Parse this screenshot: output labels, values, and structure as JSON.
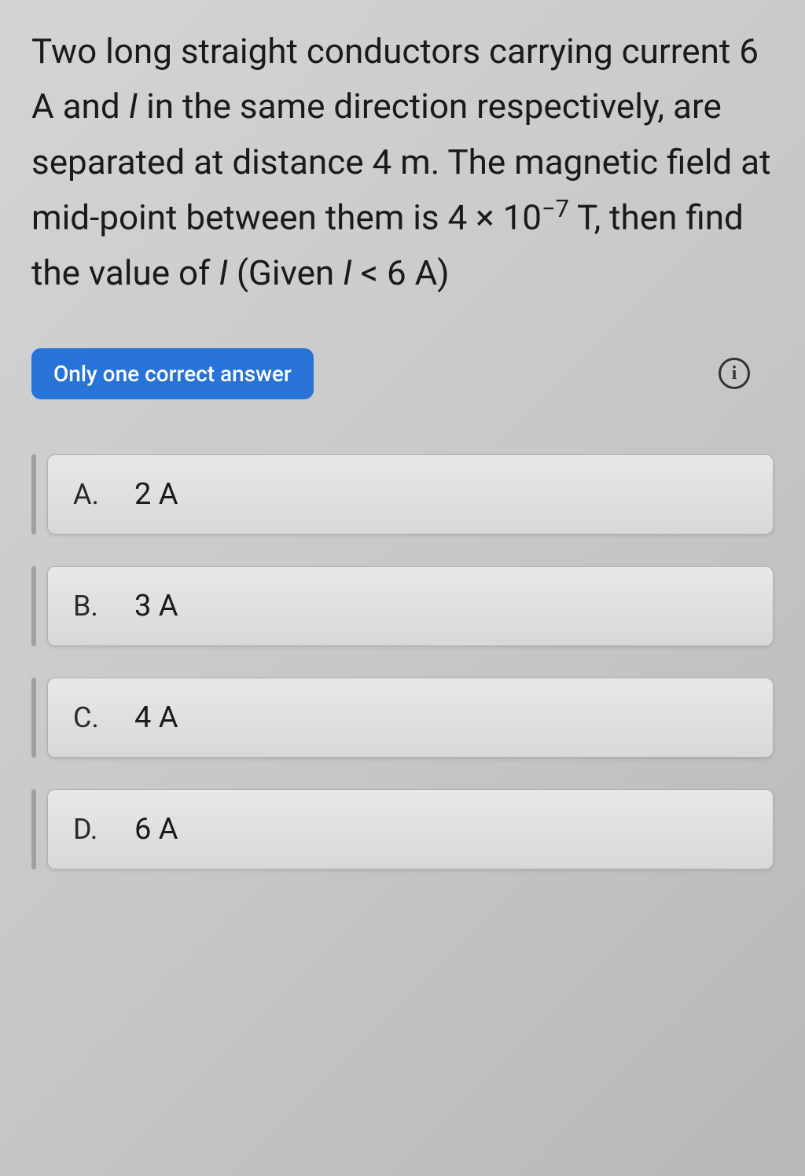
{
  "question": {
    "text_parts": [
      "Two long straight conductors carrying current 6 A and ",
      " in the same direction respectively, are separated at distance 4 m. The magnetic field at mid-point between them is 4 × 10",
      " T, then find the value of ",
      " (Given ",
      " < 6 A)"
    ],
    "italic_I": "I",
    "exponent": "−7",
    "font_size": 44,
    "color": "#1a1a1a"
  },
  "answer_type": {
    "label": "Only one correct answer",
    "background_color": "#2873d8",
    "text_color": "#ffffff",
    "font_size": 28
  },
  "info_icon": {
    "symbol": "i",
    "border_color": "#333"
  },
  "options": [
    {
      "letter": "A.",
      "value": "2 A"
    },
    {
      "letter": "B.",
      "value": "3 A"
    },
    {
      "letter": "C.",
      "value": "4 A"
    },
    {
      "letter": "D.",
      "value": "6 A"
    }
  ],
  "styling": {
    "body_width": 1024,
    "body_height": 1496,
    "background_gradient": [
      "#d4d4d4",
      "#c8c8c8",
      "#b8b8b8"
    ],
    "option_card_bg": [
      "#e8e8e8",
      "#d8d8d8"
    ],
    "option_border_color": "#b0b0b0",
    "option_marker_color": "#a0a0a0",
    "option_letter_fontsize": 36,
    "option_value_fontsize": 38,
    "option_gap": 40
  }
}
